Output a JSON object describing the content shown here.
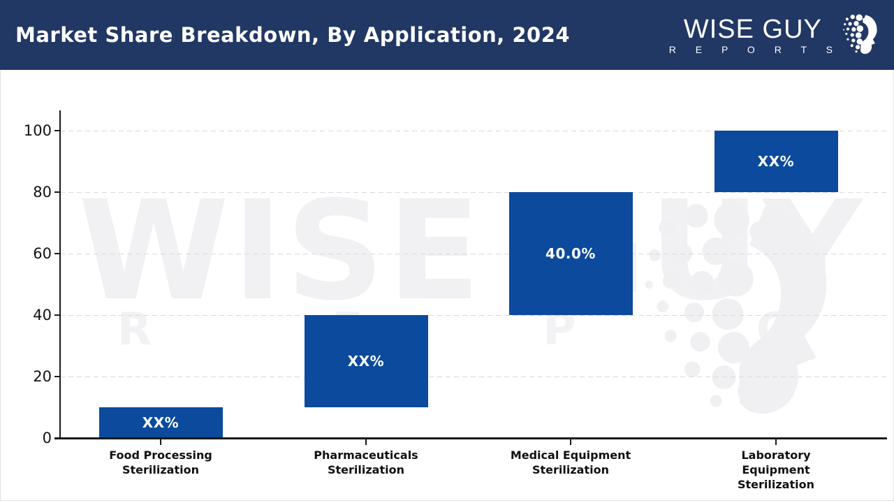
{
  "header": {
    "title": "Market Share Breakdown, By Application, 2024",
    "bg_color": "#213764",
    "logo": {
      "line1": "WISE GUY",
      "line2": "R E P O R T S"
    }
  },
  "watermark": {
    "line1": "WISE GUY",
    "line2": "R E P O R T S"
  },
  "chart_data": {
    "type": "bar",
    "subtype": "waterfall",
    "title": "Market Share Breakdown, By Application, 2024",
    "categories": [
      [
        "Food Processing",
        "Sterilization"
      ],
      [
        "Pharmaceuticals",
        "Sterilization"
      ],
      [
        "Medical Equipment",
        "Sterilization"
      ],
      [
        "Laboratory",
        "Equipment",
        "Sterilization"
      ]
    ],
    "bars": [
      {
        "label": "XX%",
        "start": 0,
        "end": 10
      },
      {
        "label": "XX%",
        "start": 10,
        "end": 40
      },
      {
        "label": "40.0%",
        "start": 40,
        "end": 80
      },
      {
        "label": "XX%",
        "start": 80,
        "end": 100
      }
    ],
    "y_ticks": [
      0,
      20,
      40,
      60,
      80,
      100
    ],
    "ylim": [
      0,
      106
    ],
    "xlabel": "",
    "ylabel": "",
    "legend": null,
    "grid": "horizontal-dashed",
    "bar_color": "#0b4a9c",
    "bar_label_color": "#ffffff"
  }
}
